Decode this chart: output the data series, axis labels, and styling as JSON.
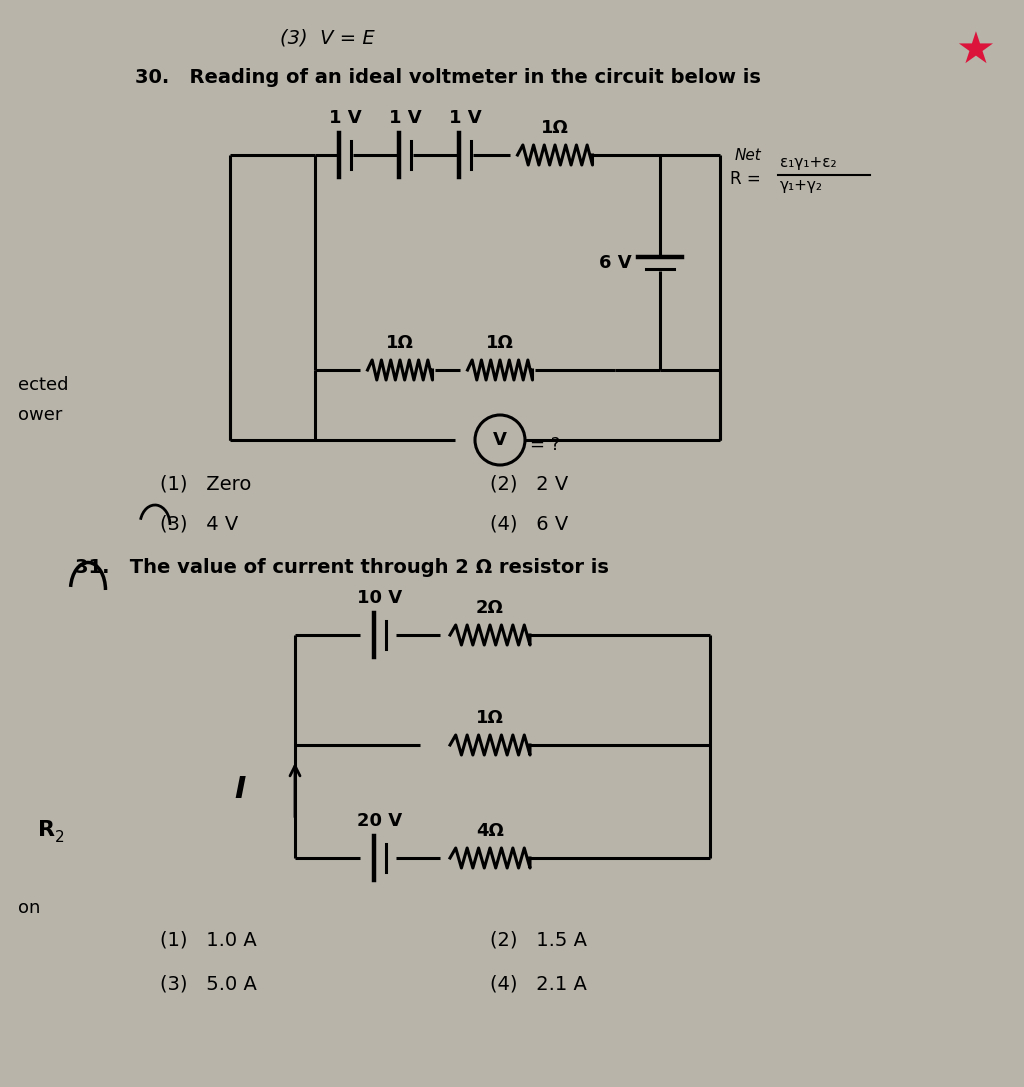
{
  "bg_color": "#b8b4aa",
  "text_color": "#111111",
  "header_text": "(3)  V = E",
  "title_q30": "30.   Reading of an ideal voltmeter in the circuit below is",
  "title_q31": "31.   The value of current through 2 Ω resistor is",
  "q30_options": [
    "(1)   Zero",
    "(2)   2 V",
    "(3)   4 V",
    "(4)   6 V"
  ],
  "q31_options": [
    "(1)   1.0 A",
    "(2)   1.5 A",
    "(3)   5.0 A",
    "(4)   2.1 A"
  ],
  "annotation_net": "Net",
  "annotation_R": "R =",
  "annotation_num": "ε₁γ₁+ε₂",
  "annotation_denom": "γ₁+γ₂",
  "left_ected": "ected",
  "left_ower": "ower",
  "left_on": "on",
  "left_R2": "R",
  "left_R2_sub": "2"
}
